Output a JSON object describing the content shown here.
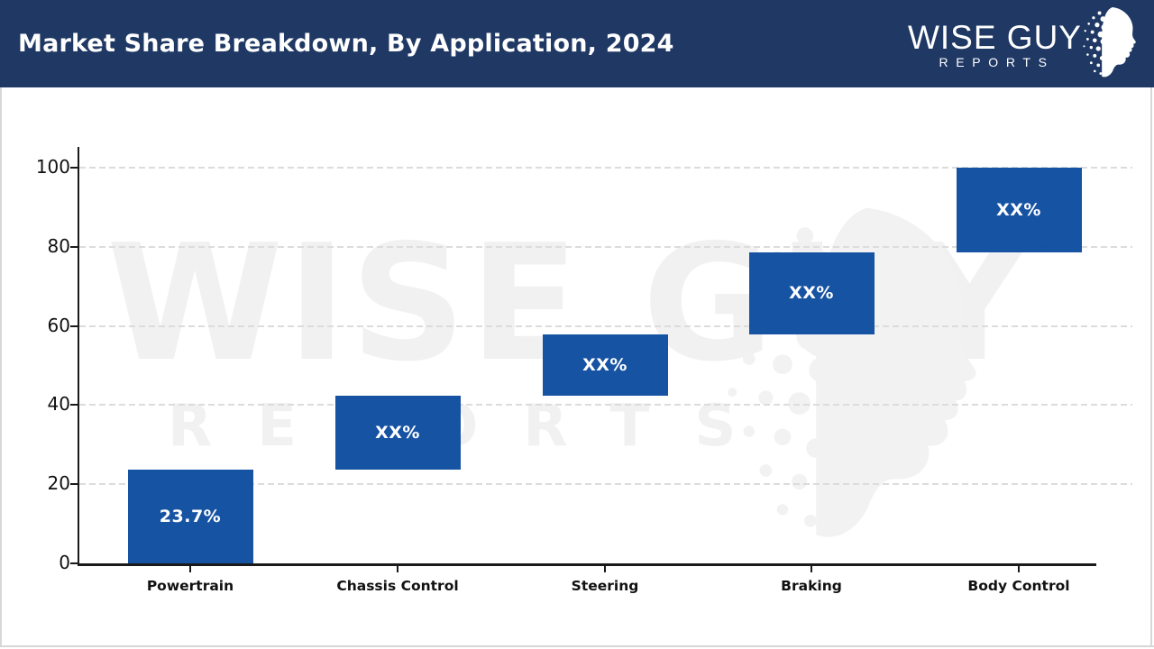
{
  "header": {
    "title": "Market Share Breakdown, By Application, 2024",
    "bg_color": "#1f3864",
    "logo": {
      "line1": "WISE GUY",
      "line2": "REPORTS"
    }
  },
  "watermark": {
    "line1": "WISE GUY",
    "line2": "REPORTS"
  },
  "chart_data": {
    "type": "bar",
    "subtype": "waterfall",
    "title": "Market Share Breakdown, By Application, 2024",
    "categories": [
      "Powertrain",
      "Chassis Control",
      "Steering",
      "Braking",
      "Body Control"
    ],
    "series": [
      {
        "name": "Market Share (%)",
        "segment_start": [
          0,
          23.7,
          42.4,
          57.9,
          78.7
        ],
        "segment_end": [
          23.7,
          42.4,
          57.9,
          78.7,
          100
        ]
      }
    ],
    "bar_labels": [
      "23.7%",
      "XX%",
      "XX%",
      "XX%",
      "XX%"
    ],
    "y_ticks": [
      0,
      20,
      40,
      60,
      80,
      100
    ],
    "ylim": [
      0,
      105
    ],
    "xlabel": "",
    "ylabel": "",
    "grid": "horizontal-dashed",
    "legend": "none",
    "bar_color": "#0b4a9e",
    "label_color": "#ffffff"
  }
}
